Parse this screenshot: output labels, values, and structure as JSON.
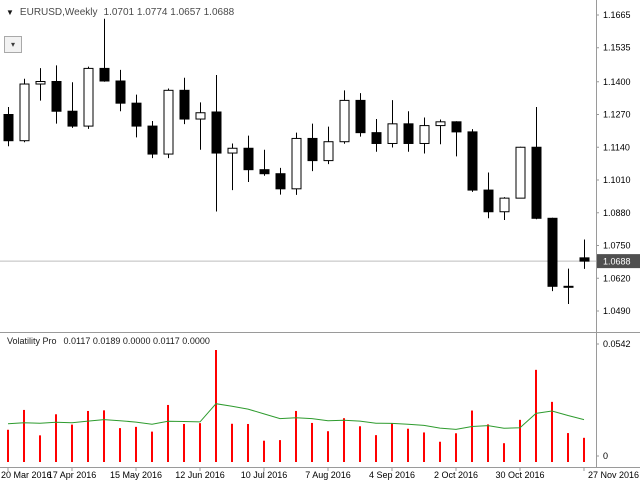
{
  "header": {
    "symbol": "EURUSD,Weekly",
    "ohlc": "1.0701 1.0774 1.0657 1.0688"
  },
  "icons": {
    "title_marker": "▼",
    "one_click": "▾"
  },
  "indicator": {
    "name": "Volatility Pro",
    "values": "0.0117 0.0189 0.0000 0.0117 0.0000"
  },
  "axes": {
    "price_ticks": [
      "1.1665",
      "1.1535",
      "1.1400",
      "1.1270",
      "1.1140",
      "1.1010",
      "1.0880",
      "1.0750",
      "1.0620",
      "1.0490"
    ],
    "bid_badge": "1.0688",
    "indicator_ticks": [
      "0.0542",
      "0"
    ],
    "date_ticks": [
      "20 Mar 2016",
      "17 Apr 2016",
      "15 May 2016",
      "12 Jun 2016",
      "10 Jul 2016",
      "7 Aug 2016",
      "4 Sep 2016",
      "2 Oct 2016",
      "30 Oct 2016",
      "27 Nov 2016"
    ]
  },
  "colors": {
    "bull": "#ffffff",
    "bear": "#000000",
    "candle_outline": "#000000",
    "histogram": "#ff0000",
    "ma_line": "#2e9b2e",
    "bid_line": "#bdbdbd",
    "badge_bg": "#4f4f4f",
    "badge_text": "#ffffff",
    "separator": "#9a9a9a",
    "axis_text": "#000000"
  },
  "chart_data": [
    {
      "type": "candlestick",
      "title": "EURUSD Weekly",
      "x": [
        "2016-03-20",
        "2016-03-27",
        "2016-04-03",
        "2016-04-10",
        "2016-04-17",
        "2016-04-24",
        "2016-05-01",
        "2016-05-08",
        "2016-05-15",
        "2016-05-22",
        "2016-05-29",
        "2016-06-05",
        "2016-06-12",
        "2016-06-19",
        "2016-06-26",
        "2016-07-03",
        "2016-07-10",
        "2016-07-17",
        "2016-07-24",
        "2016-07-31",
        "2016-08-07",
        "2016-08-14",
        "2016-08-21",
        "2016-08-28",
        "2016-09-04",
        "2016-09-11",
        "2016-09-18",
        "2016-09-25",
        "2016-10-02",
        "2016-10-09",
        "2016-10-16",
        "2016-10-23",
        "2016-10-30",
        "2016-11-06",
        "2016-11-13",
        "2016-11-20",
        "2016-11-27"
      ],
      "open": [
        1.127,
        1.1166,
        1.1391,
        1.1401,
        1.1283,
        1.1224,
        1.1453,
        1.1403,
        1.1315,
        1.1224,
        1.1113,
        1.1366,
        1.1252,
        1.128,
        1.1117,
        1.1136,
        1.1051,
        1.1035,
        1.0975,
        1.1175,
        1.1087,
        1.1162,
        1.1326,
        1.1198,
        1.1155,
        1.1233,
        1.1155,
        1.1226,
        1.1241,
        1.1201,
        1.097,
        1.0884,
        1.0938,
        1.114,
        1.0858,
        1.0588,
        1.0701
      ],
      "high": [
        1.13,
        1.1412,
        1.1454,
        1.1465,
        1.1398,
        1.146,
        1.165,
        1.1447,
        1.1349,
        1.1244,
        1.1373,
        1.1416,
        1.1318,
        1.1427,
        1.1155,
        1.1186,
        1.113,
        1.1058,
        1.1198,
        1.1234,
        1.1222,
        1.1366,
        1.1355,
        1.1252,
        1.1327,
        1.1283,
        1.1258,
        1.125,
        1.1243,
        1.1212,
        1.104,
        1.0942,
        1.1142,
        1.13,
        1.086,
        1.0658,
        1.0774
      ],
      "low": [
        1.1144,
        1.116,
        1.1325,
        1.1234,
        1.1217,
        1.1213,
        1.14,
        1.1283,
        1.1179,
        1.1097,
        1.1097,
        1.1232,
        1.113,
        1.0885,
        1.097,
        1.1002,
        1.1027,
        1.0952,
        1.0951,
        1.1045,
        1.1073,
        1.1154,
        1.1182,
        1.1122,
        1.1139,
        1.1122,
        1.1115,
        1.1152,
        1.1104,
        1.0963,
        1.0858,
        1.0851,
        1.0938,
        1.0854,
        1.0569,
        1.0518,
        1.0657
      ],
      "close": [
        1.1166,
        1.1391,
        1.1401,
        1.1283,
        1.1224,
        1.1453,
        1.1403,
        1.1315,
        1.1224,
        1.1113,
        1.1366,
        1.1252,
        1.1277,
        1.1117,
        1.1136,
        1.1051,
        1.1035,
        1.0975,
        1.1175,
        1.1087,
        1.1162,
        1.1326,
        1.1198,
        1.1155,
        1.1233,
        1.1155,
        1.1226,
        1.1241,
        1.1201,
        1.097,
        1.0884,
        1.0938,
        1.114,
        1.0858,
        1.0588,
        1.0585,
        1.0688
      ],
      "ylim": [
        1.049,
        1.1665
      ],
      "y_ticks": [
        1.1665,
        1.1535,
        1.14,
        1.127,
        1.114,
        1.101,
        1.088,
        1.075,
        1.062,
        1.049
      ],
      "current_price": 1.0688,
      "date_tick_indices": [
        0,
        4,
        8,
        12,
        16,
        20,
        24,
        28,
        32,
        36
      ],
      "grid": false,
      "legend": "none"
    },
    {
      "type": "bar",
      "title": "Volatility Pro",
      "values": [
        0.0156,
        0.0252,
        0.0129,
        0.0231,
        0.0181,
        0.0247,
        0.025,
        0.0164,
        0.017,
        0.0147,
        0.0276,
        0.0184,
        0.0188,
        0.0542,
        0.0185,
        0.0184,
        0.0103,
        0.0106,
        0.0247,
        0.0189,
        0.0149,
        0.0212,
        0.0173,
        0.013,
        0.0188,
        0.0161,
        0.0143,
        0.0098,
        0.0139,
        0.0249,
        0.0182,
        0.0091,
        0.0204,
        0.0446,
        0.0291,
        0.014,
        0.0117
      ],
      "series": [
        {
          "name": "average-line",
          "values": [
            0.0185,
            0.019,
            0.0188,
            0.0192,
            0.019,
            0.0198,
            0.0205,
            0.02,
            0.0193,
            0.0183,
            0.0197,
            0.0196,
            0.0194,
            0.0282,
            0.027,
            0.0256,
            0.0233,
            0.021,
            0.0214,
            0.021,
            0.02,
            0.0202,
            0.0198,
            0.0188,
            0.0187,
            0.0183,
            0.0177,
            0.0164,
            0.0158,
            0.0172,
            0.0176,
            0.0163,
            0.0166,
            0.0235,
            0.0247,
            0.0225,
            0.0205
          ]
        }
      ],
      "ylim": [
        0,
        0.0542
      ],
      "y_ticks": [
        0.0542,
        0
      ],
      "grid": false,
      "legend": "none"
    }
  ]
}
